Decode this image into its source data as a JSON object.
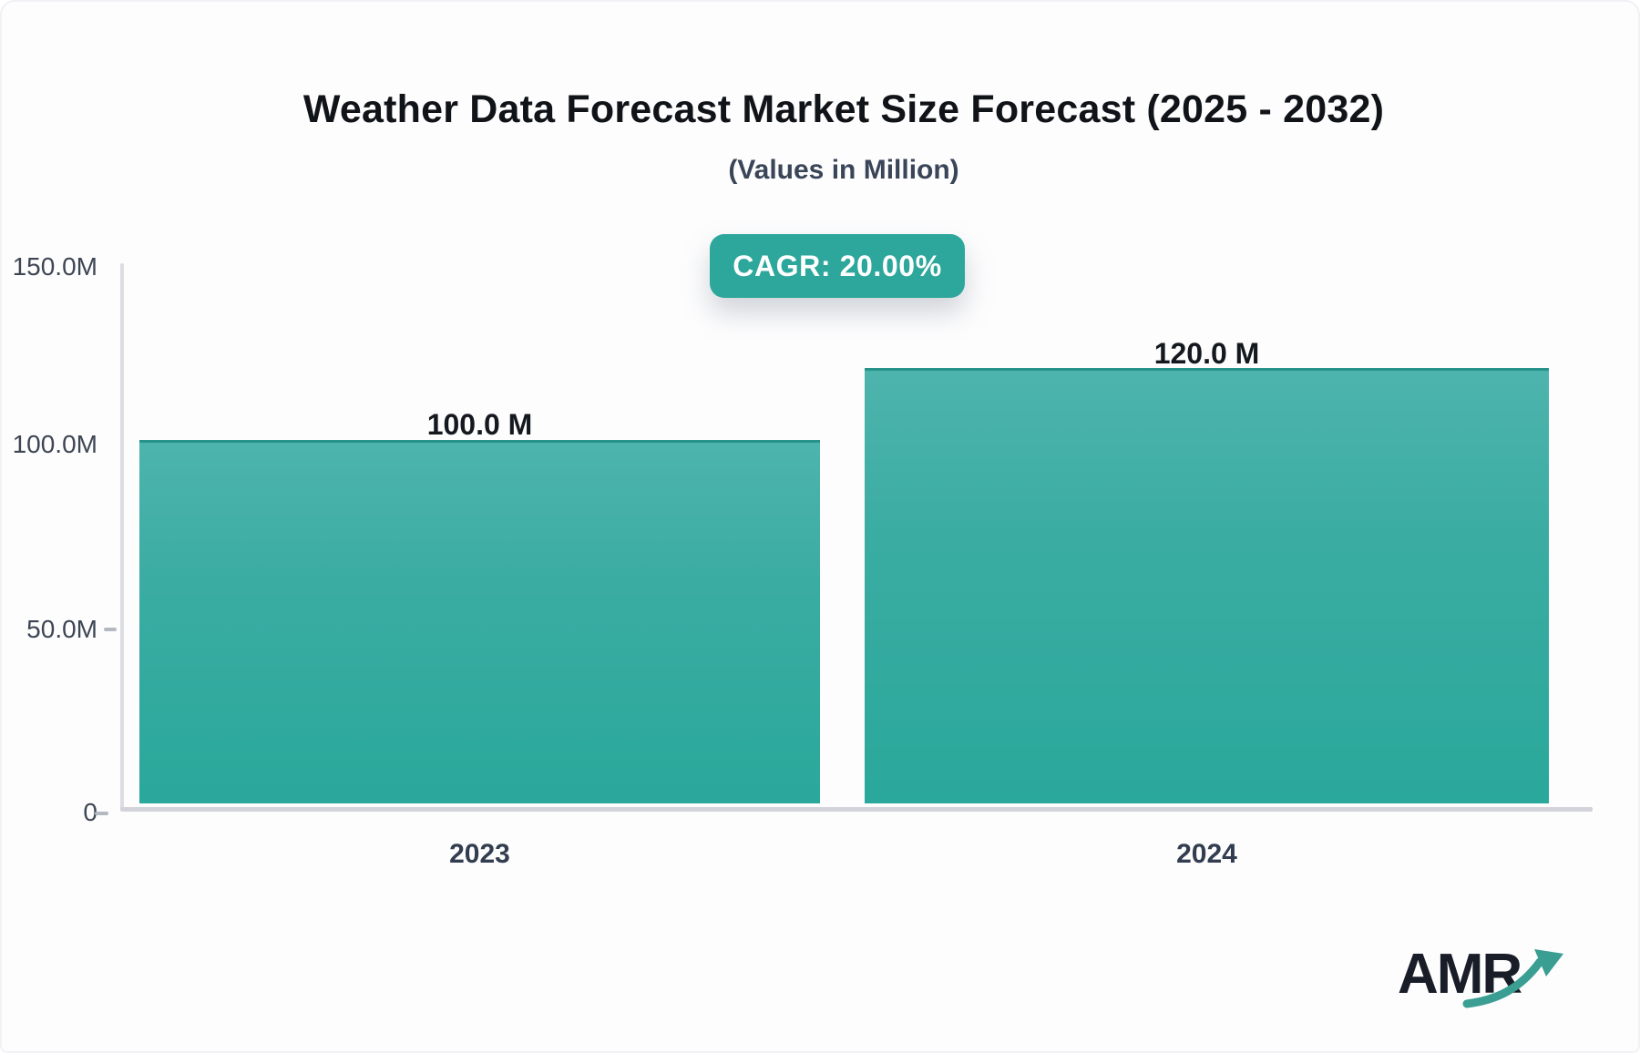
{
  "header": {
    "title": "Weather Data Forecast Market Size Forecast (2025 - 2032)",
    "subtitle": "(Values in Million)",
    "cagr_badge": "CAGR: 20.00%"
  },
  "chart_data": {
    "type": "bar",
    "title": "Weather Data Forecast Market Size Forecast (2025 - 2032)",
    "subtitle": "(Values in Million)",
    "unit": "Million",
    "cagr_percent": "20.00%",
    "categories": [
      "2023",
      "2024"
    ],
    "values": [
      100.0,
      120.0
    ],
    "value_labels": [
      "100.0 M",
      "120.0 M"
    ],
    "ylim": [
      0,
      150
    ],
    "ytick_labels": [
      "150.0M",
      "100.0M",
      "50.0M",
      "0"
    ],
    "grid": false,
    "legend": false,
    "colors": {
      "accent": "#2da79b",
      "bar_gradient_top": "#4db4ac",
      "bar_gradient_bottom": "#2aa89b",
      "bar_top_border": "#26938b",
      "axis_line": "#d3d4da",
      "label_text": "#14181f"
    }
  },
  "branding": {
    "logo_text": "AMR"
  }
}
